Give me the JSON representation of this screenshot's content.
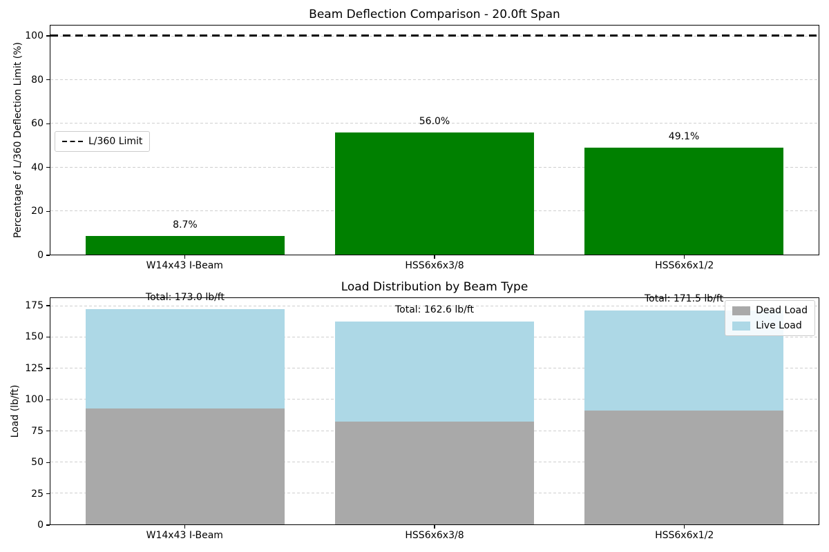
{
  "chart_data": [
    {
      "type": "bar",
      "title": "Beam Deflection Comparison - 20.0ft Span",
      "ylabel": "Percentage of L/360 Deflection Limit (%)",
      "xlabel": "",
      "categories": [
        "W14x43 I-Beam",
        "HSS6x6x3/8",
        "HSS6x6x1/2"
      ],
      "values": [
        8.7,
        56.0,
        49.1
      ],
      "bar_labels": [
        "8.7%",
        "56.0%",
        "49.1%"
      ],
      "bar_color": "#008000",
      "ylim": [
        0,
        105
      ],
      "yticks": [
        0,
        20,
        40,
        60,
        80,
        100
      ],
      "grid": "horizontal-dashed",
      "reference_line": {
        "value": 100,
        "style": "dashed",
        "color": "#000000",
        "label": "L/360 Limit"
      },
      "legend": {
        "position": "center-left",
        "entries": [
          {
            "label": "L/360 Limit",
            "swatch": "dashed-line",
            "color": "#000000"
          }
        ]
      }
    },
    {
      "type": "stacked-bar",
      "title": "Load Distribution by Beam Type",
      "ylabel": "Load (lb/ft)",
      "xlabel": "",
      "categories": [
        "W14x43 I-Beam",
        "HSS6x6x3/8",
        "HSS6x6x1/2"
      ],
      "series": [
        {
          "name": "Dead Load",
          "color": "#a9a9a9",
          "values": [
            93.0,
            82.6,
            91.5
          ]
        },
        {
          "name": "Live Load",
          "color": "#add8e6",
          "values": [
            80.0,
            80.0,
            80.0
          ]
        }
      ],
      "totals": [
        173.0,
        162.6,
        171.5
      ],
      "total_labels": [
        "Total: 173.0 lb/ft",
        "Total: 162.6 lb/ft",
        "Total: 171.5 lb/ft"
      ],
      "ylim": [
        0,
        181.65
      ],
      "yticks": [
        0,
        25,
        50,
        75,
        100,
        125,
        150,
        175
      ],
      "grid": "horizontal-dashed",
      "legend": {
        "position": "upper-right",
        "entries": [
          {
            "label": "Dead Load",
            "swatch": "patch",
            "color": "#a9a9a9"
          },
          {
            "label": "Live Load",
            "swatch": "patch",
            "color": "#add8e6"
          }
        ]
      }
    }
  ]
}
